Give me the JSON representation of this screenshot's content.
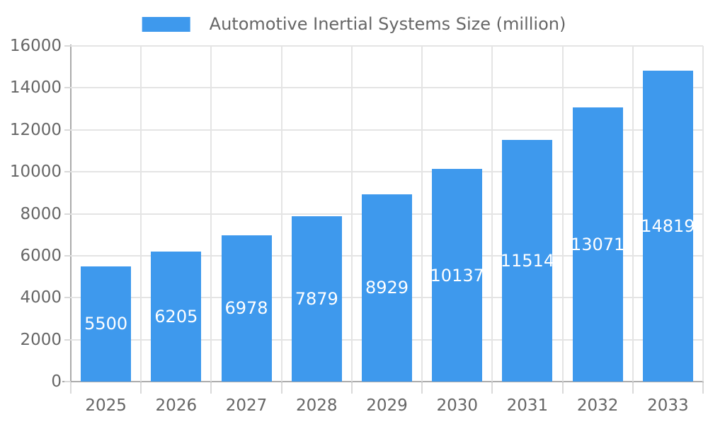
{
  "legend": {
    "label": "Automotive Inertial Systems Size (million)"
  },
  "chart_data": {
    "type": "bar",
    "title": "Automotive Inertial Systems Size (million)",
    "series_name": "Automotive Inertial Systems Size (million)",
    "categories": [
      "2025",
      "2026",
      "2027",
      "2028",
      "2029",
      "2030",
      "2031",
      "2032",
      "2033"
    ],
    "values": [
      5500,
      6205,
      6978,
      7879,
      8929,
      10137,
      11514,
      13071,
      14819
    ],
    "xlabel": "",
    "ylabel": "",
    "ylim": [
      0,
      16000
    ],
    "ytick_step": 2000,
    "yticks": [
      0,
      2000,
      4000,
      6000,
      8000,
      10000,
      12000,
      14000,
      16000
    ],
    "grid": "both",
    "legend_position": "top-center",
    "bar_labels": "inside-center",
    "colors": {
      "bar": "#3E99ED",
      "bar_label": "#FFFFFF",
      "grid": "#E4E4E4",
      "axis": "#ABABAB",
      "tick": "#D9D9D9",
      "text": "#666666",
      "background": "#FFFFFF"
    }
  }
}
